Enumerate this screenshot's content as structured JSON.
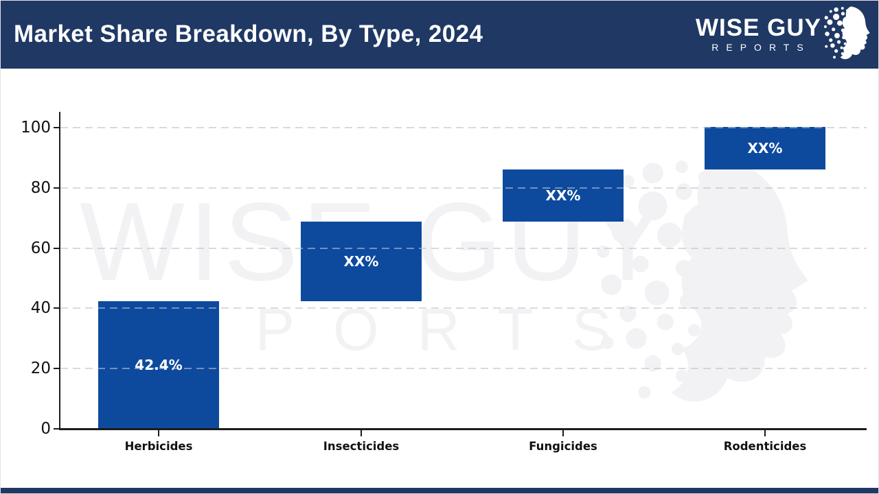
{
  "header": {
    "title": "Market Share Breakdown, By Type, 2024",
    "bg_color": "#1f3864",
    "logo": {
      "line1": "WISE GUY",
      "line2": "REPORTS"
    }
  },
  "watermark": {
    "line1": "WISE GUY",
    "line2": "REPORTS"
  },
  "chart_data": {
    "type": "bar",
    "subtype": "waterfall",
    "title": "Market Share Breakdown, By Type, 2024",
    "categories": [
      "Herbicides",
      "Insecticides",
      "Fungicides",
      "Rodenticides"
    ],
    "series": [
      {
        "name": "Market Share (%)",
        "segments": [
          [
            0,
            42.4
          ],
          [
            42.4,
            68.8
          ],
          [
            68.8,
            86.0
          ],
          [
            86.0,
            100.3
          ]
        ]
      }
    ],
    "bar_labels": [
      "42.4%",
      "XX%",
      "XX%",
      "XX%"
    ],
    "xlabel": "",
    "ylabel": "",
    "ylim": [
      0,
      105
    ],
    "yticks": [
      0,
      20,
      40,
      60,
      80,
      100
    ],
    "grid": "horizontal-dashed",
    "legend": "none",
    "bar_color": "#0d4a9e",
    "grid_color": "#dcdee2"
  },
  "footer": {}
}
